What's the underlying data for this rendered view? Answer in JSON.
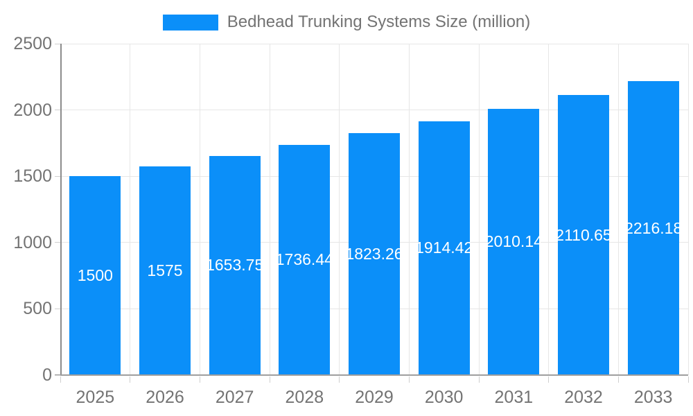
{
  "legend": {
    "label": "Bedhead Trunking Systems Size (million)",
    "swatch_color": "#0b8ff9"
  },
  "chart_data": {
    "type": "bar",
    "title": "Bedhead Trunking Systems Size (million)",
    "categories": [
      "2025",
      "2026",
      "2027",
      "2028",
      "2029",
      "2030",
      "2031",
      "2032",
      "2033"
    ],
    "values": [
      1500,
      1575,
      1653.75,
      1736.44,
      1823.26,
      1914.42,
      2010.14,
      2110.65,
      2216.18
    ],
    "bar_labels": [
      "1500",
      "1575",
      "1653.75",
      "1736.44",
      "1823.26",
      "1914.42",
      "2010.14",
      "2110.65",
      "2216.18"
    ],
    "xlabel": "",
    "ylabel": "",
    "ylim": [
      0,
      2500
    ],
    "y_ticks": [
      "0",
      "500",
      "1000",
      "1500",
      "2000",
      "2500"
    ],
    "grid": true,
    "legend_position": "top",
    "bar_color": "#0b8ff9",
    "value_label_color": "#ffffff",
    "tick_label_color": "#737373",
    "gridline_color": "#e6e6e6",
    "axis_color": "#9e9e9e"
  }
}
